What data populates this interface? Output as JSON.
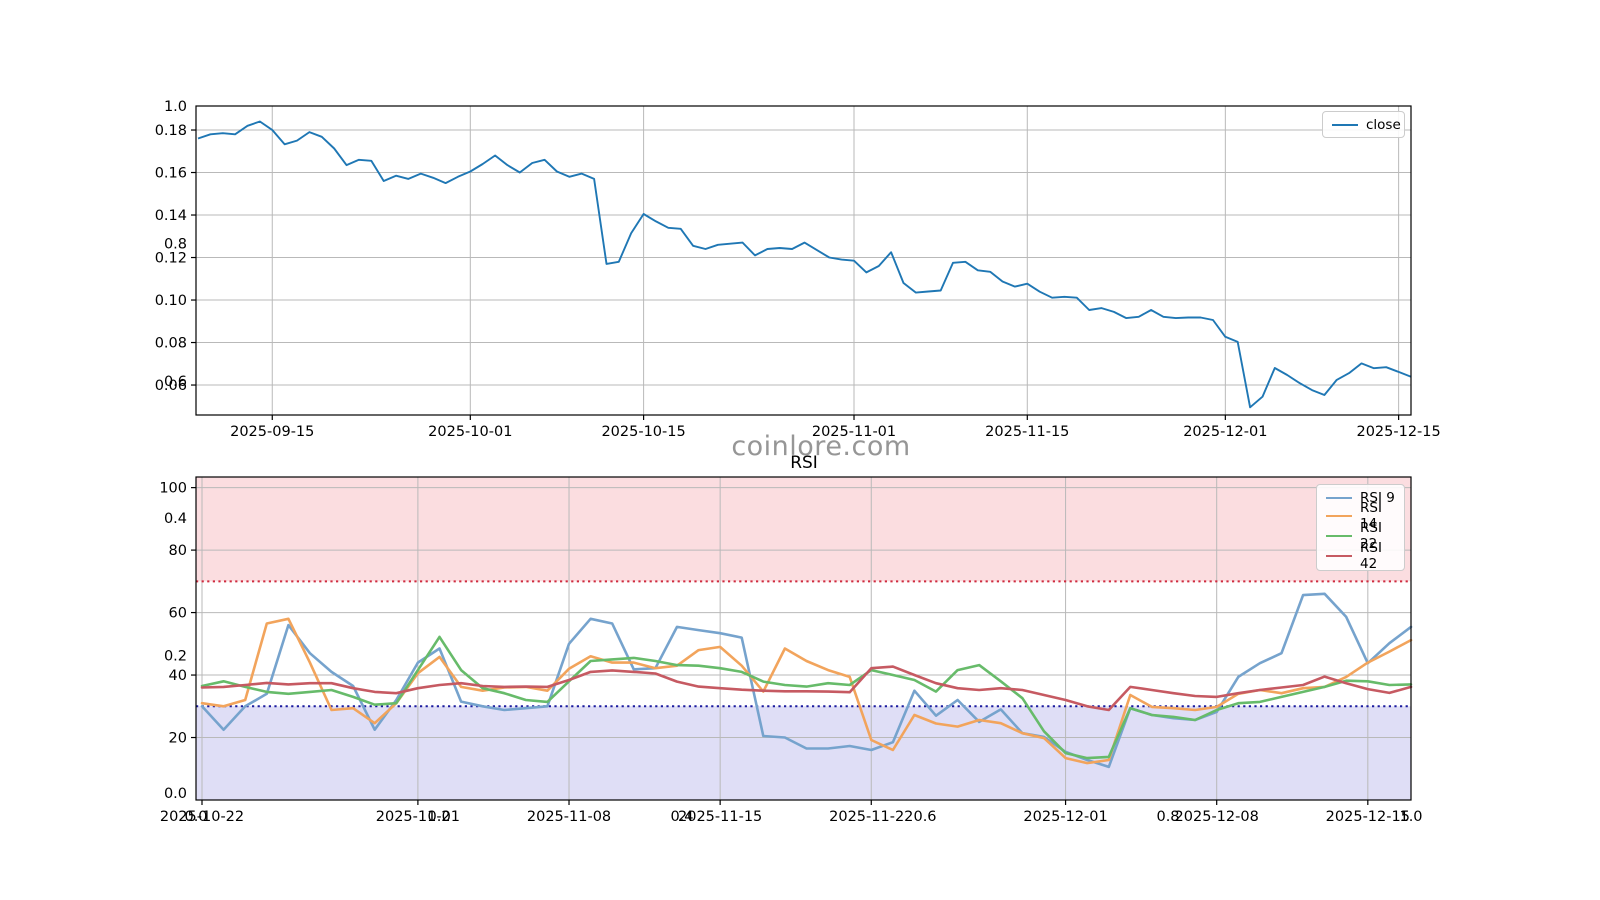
{
  "watermark": "coinlore.com",
  "overlay_axis": {
    "x_labels": [
      "0.0",
      "0.2",
      "0.4",
      "0.6",
      "0.8",
      "1.0"
    ],
    "y_labels": [
      "1.0",
      "0.8",
      "0.6",
      "0.4",
      "0.2",
      "0.0"
    ]
  },
  "chart_data": [
    {
      "type": "line",
      "title": "",
      "legend": [
        "close"
      ],
      "x_start": "2025-09-09",
      "x_end": "2025-12-16",
      "x_interval": "daily",
      "x_tick_labels": [
        "2025-09-15",
        "2025-10-01",
        "2025-10-15",
        "2025-11-01",
        "2025-11-15",
        "2025-12-01",
        "2025-12-15"
      ],
      "x_tick_day_offsets": [
        6,
        22,
        36,
        53,
        67,
        83,
        97
      ],
      "y_tick_labels": [
        "0.18",
        "0.16",
        "0.14",
        "0.12",
        "0.10",
        "0.08",
        "0.06"
      ],
      "y_ticks": [
        0.18,
        0.16,
        0.14,
        0.12,
        0.1,
        0.08,
        0.06
      ],
      "ylim": [
        0.0459,
        0.1913
      ],
      "grid": true,
      "series": [
        {
          "name": "close",
          "color": "#1f77b4",
          "values": [
            0.176,
            0.178,
            0.1785,
            0.178,
            0.182,
            0.184,
            0.18,
            0.1733,
            0.175,
            0.179,
            0.1768,
            0.1713,
            0.1635,
            0.166,
            0.1655,
            0.156,
            0.1585,
            0.157,
            0.1595,
            0.1575,
            0.155,
            0.158,
            0.1605,
            0.164,
            0.168,
            0.1635,
            0.16,
            0.1645,
            0.166,
            0.1605,
            0.158,
            0.1595,
            0.157,
            0.117,
            0.118,
            0.1315,
            0.1405,
            0.137,
            0.134,
            0.1335,
            0.1255,
            0.124,
            0.126,
            0.1265,
            0.127,
            0.121,
            0.124,
            0.1245,
            0.124,
            0.127,
            0.1235,
            0.12,
            0.119,
            0.1185,
            0.113,
            0.116,
            0.1225,
            0.108,
            0.1035,
            0.104,
            0.1045,
            0.1175,
            0.118,
            0.114,
            0.1133,
            0.1087,
            0.1063,
            0.1077,
            0.1039,
            0.1011,
            0.1015,
            0.1011,
            0.0953,
            0.0962,
            0.0944,
            0.0915,
            0.0921,
            0.0953,
            0.0921,
            0.0915,
            0.0918,
            0.0918,
            0.0906,
            0.0827,
            0.0803,
            0.0495,
            0.0545,
            0.068,
            0.0647,
            0.0609,
            0.0576,
            0.0553,
            0.0624,
            0.0656,
            0.0702,
            0.0679,
            0.0684,
            0.0662,
            0.0639
          ]
        }
      ]
    },
    {
      "type": "line",
      "title": "RSI",
      "legend": [
        "RSI 9",
        "RSI 14",
        "RSI 22",
        "RSI 42"
      ],
      "x_start": "2025-10-22",
      "x_end": "2025-12-17",
      "x_interval": "daily",
      "x_tick_labels": [
        "2025-10-22",
        "2025-11-01",
        "2025-11-08",
        "2025-11-15",
        "2025-11-22",
        "2025-12-01",
        "2025-12-08",
        "2025-12-15"
      ],
      "x_tick_day_offsets": [
        0,
        10,
        17,
        24,
        31,
        40,
        47,
        54
      ],
      "y_tick_labels": [
        "100",
        "80",
        "60",
        "40",
        "20"
      ],
      "y_ticks": [
        100,
        80,
        60,
        40,
        20
      ],
      "ylim": [
        0,
        103.4
      ],
      "grid": true,
      "overbought_level": 70,
      "oversold_level": 30,
      "overbought_band_color": "#fbdde0",
      "oversold_band_color": "#dfdef6",
      "overbought_line_color": "#cf2b3f",
      "oversold_line_color": "#1a1a9e",
      "series": [
        {
          "name": "RSI 9",
          "color": "#76a3cd",
          "values": [
            30,
            22.5,
            30,
            34,
            56,
            47,
            41,
            36.5,
            22.5,
            32,
            44,
            48.5,
            31.5,
            30,
            28.8,
            29.4,
            30,
            50,
            58,
            56.5,
            41.8,
            42.2,
            55.4,
            54.4,
            53.4,
            52,
            20.5,
            20,
            16.5,
            16.5,
            17.3,
            16,
            18.5,
            35,
            27,
            32,
            25,
            29,
            21.4,
            20.2,
            15.4,
            12.8,
            10.6,
            29.4,
            27.2,
            26.2,
            25.6,
            28.2,
            39.4,
            43.8,
            47,
            65.6,
            66,
            58.6,
            43.8,
            50.2,
            55.4
          ]
        },
        {
          "name": "RSI 14",
          "color": "#f2a45c",
          "values": [
            31,
            30,
            32,
            56.5,
            58,
            44,
            28.8,
            29.4,
            24.6,
            31,
            40.6,
            45.8,
            36.2,
            35,
            36,
            36.2,
            35,
            42,
            46,
            44,
            44,
            42.2,
            43,
            48,
            49,
            43,
            34.7,
            48.5,
            44.5,
            41.6,
            39.4,
            19.2,
            16,
            27.2,
            24.5,
            23.5,
            25.6,
            24.6,
            21.4,
            19.8,
            13.4,
            11.8,
            12.8,
            33.6,
            29.8,
            29.4,
            28.8,
            29.8,
            34,
            35.2,
            34.2,
            35.8,
            36.2,
            39.4,
            44,
            47.5,
            51.2
          ]
        },
        {
          "name": "RSI 22",
          "color": "#67bb6a",
          "values": [
            36.5,
            38,
            36.2,
            34.6,
            34,
            34.6,
            35.2,
            33,
            30.5,
            31,
            41.6,
            52.2,
            41.6,
            35.8,
            34.2,
            32,
            31.4,
            38,
            44.5,
            45,
            45.5,
            44.5,
            43.2,
            43,
            42.2,
            41,
            37.9,
            36.8,
            36.3,
            37.4,
            36.8,
            41.6,
            40,
            38.4,
            34.7,
            41.6,
            43.2,
            38,
            32.6,
            22,
            15,
            13.4,
            13.8,
            29.4,
            27.2,
            26.6,
            25.6,
            28.8,
            31,
            31.4,
            33,
            34.6,
            36.2,
            38.2,
            38,
            36.8,
            37
          ]
        },
        {
          "name": "RSI 42",
          "color": "#c65a62",
          "values": [
            36,
            36.2,
            36.8,
            37.5,
            37,
            37.4,
            37.4,
            35.8,
            34.6,
            34.2,
            35.8,
            36.8,
            37.4,
            36.5,
            36.2,
            36.3,
            36.2,
            38.4,
            41,
            41.5,
            41,
            40.5,
            37.9,
            36.3,
            35.8,
            35.3,
            35,
            34.8,
            34.8,
            34.7,
            34.5,
            42.2,
            42.7,
            40,
            37.4,
            35.8,
            35.2,
            35.8,
            35.2,
            33.6,
            32,
            30,
            28.8,
            36.2,
            35.2,
            34.2,
            33.3,
            33,
            34.2,
            35.2,
            36,
            36.8,
            39.5,
            37.4,
            35.5,
            34.3,
            36.2
          ]
        }
      ]
    }
  ]
}
